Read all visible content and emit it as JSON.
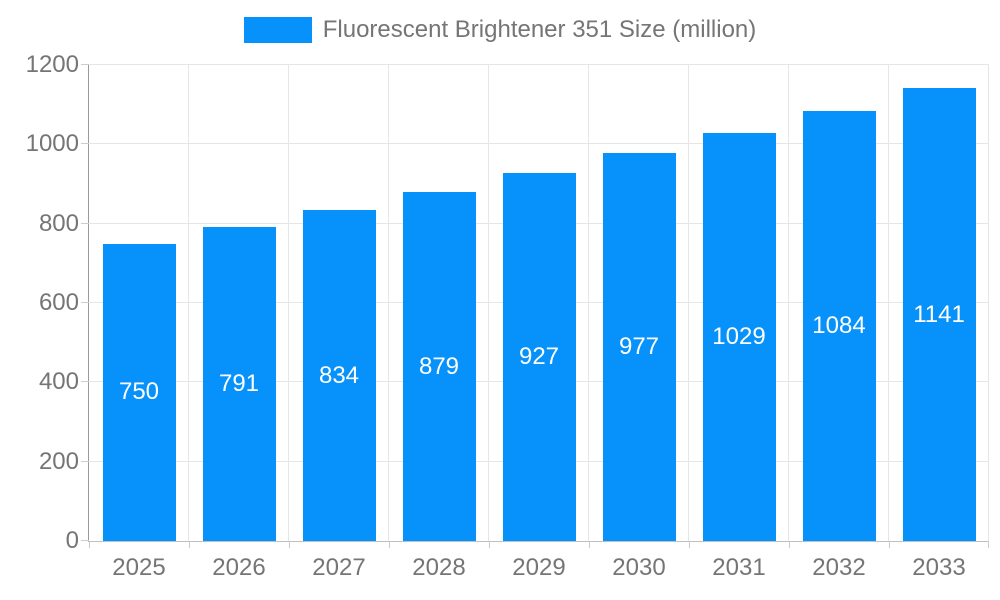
{
  "legend": {
    "label": "Fluorescent Brightener 351 Size (million)"
  },
  "chart_data": {
    "type": "bar",
    "title": "Fluorescent Brightener 351 Size (million)",
    "categories": [
      "2025",
      "2026",
      "2027",
      "2028",
      "2029",
      "2030",
      "2031",
      "2032",
      "2033"
    ],
    "values": [
      750,
      791,
      834,
      879,
      927,
      977,
      1029,
      1084,
      1141
    ],
    "xlabel": "",
    "ylabel": "",
    "ylim": [
      0,
      1200
    ],
    "yticks": [
      0,
      200,
      400,
      600,
      800,
      1000,
      1200
    ],
    "grid": true,
    "legend_position": "top",
    "bar_color": "#0692fa",
    "value_label_color": "#ffffff",
    "axis_label_color": "#757575",
    "grid_color": "#e6e6e6"
  }
}
